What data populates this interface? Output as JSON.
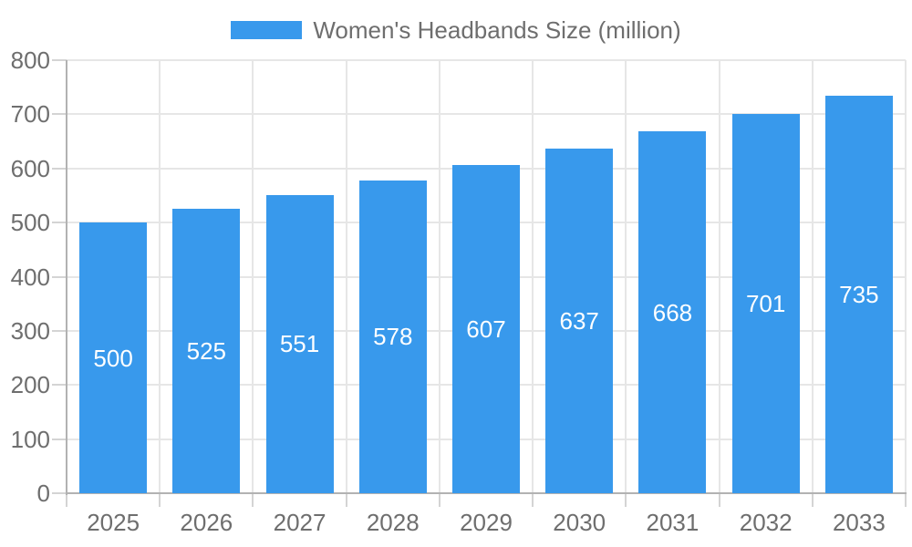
{
  "legend": {
    "label": "Women's Headbands Size (million)"
  },
  "chart_data": {
    "type": "bar",
    "title": "Women's Headbands Size (million)",
    "series_name": "Women's Headbands Size (million)",
    "categories": [
      "2025",
      "2026",
      "2027",
      "2028",
      "2029",
      "2030",
      "2031",
      "2032",
      "2033"
    ],
    "values": [
      500,
      525,
      551,
      578,
      607,
      637,
      668,
      701,
      735
    ],
    "xlabel": "",
    "ylabel": "",
    "ylim": [
      0,
      800
    ],
    "ytick_step": 100,
    "yticks": [
      0,
      100,
      200,
      300,
      400,
      500,
      600,
      700,
      800
    ],
    "grid": true,
    "legend_position": "top",
    "value_labels": "inside-bar-centered",
    "colors": {
      "bar": "#3899EC",
      "value_label": "#FFFFFF",
      "axis_text": "#6E6E6E",
      "gridline": "#E6E6E6",
      "tick": "#D4D4D4",
      "axis_line": "#B2B2B2",
      "background": "#FFFFFF"
    }
  }
}
